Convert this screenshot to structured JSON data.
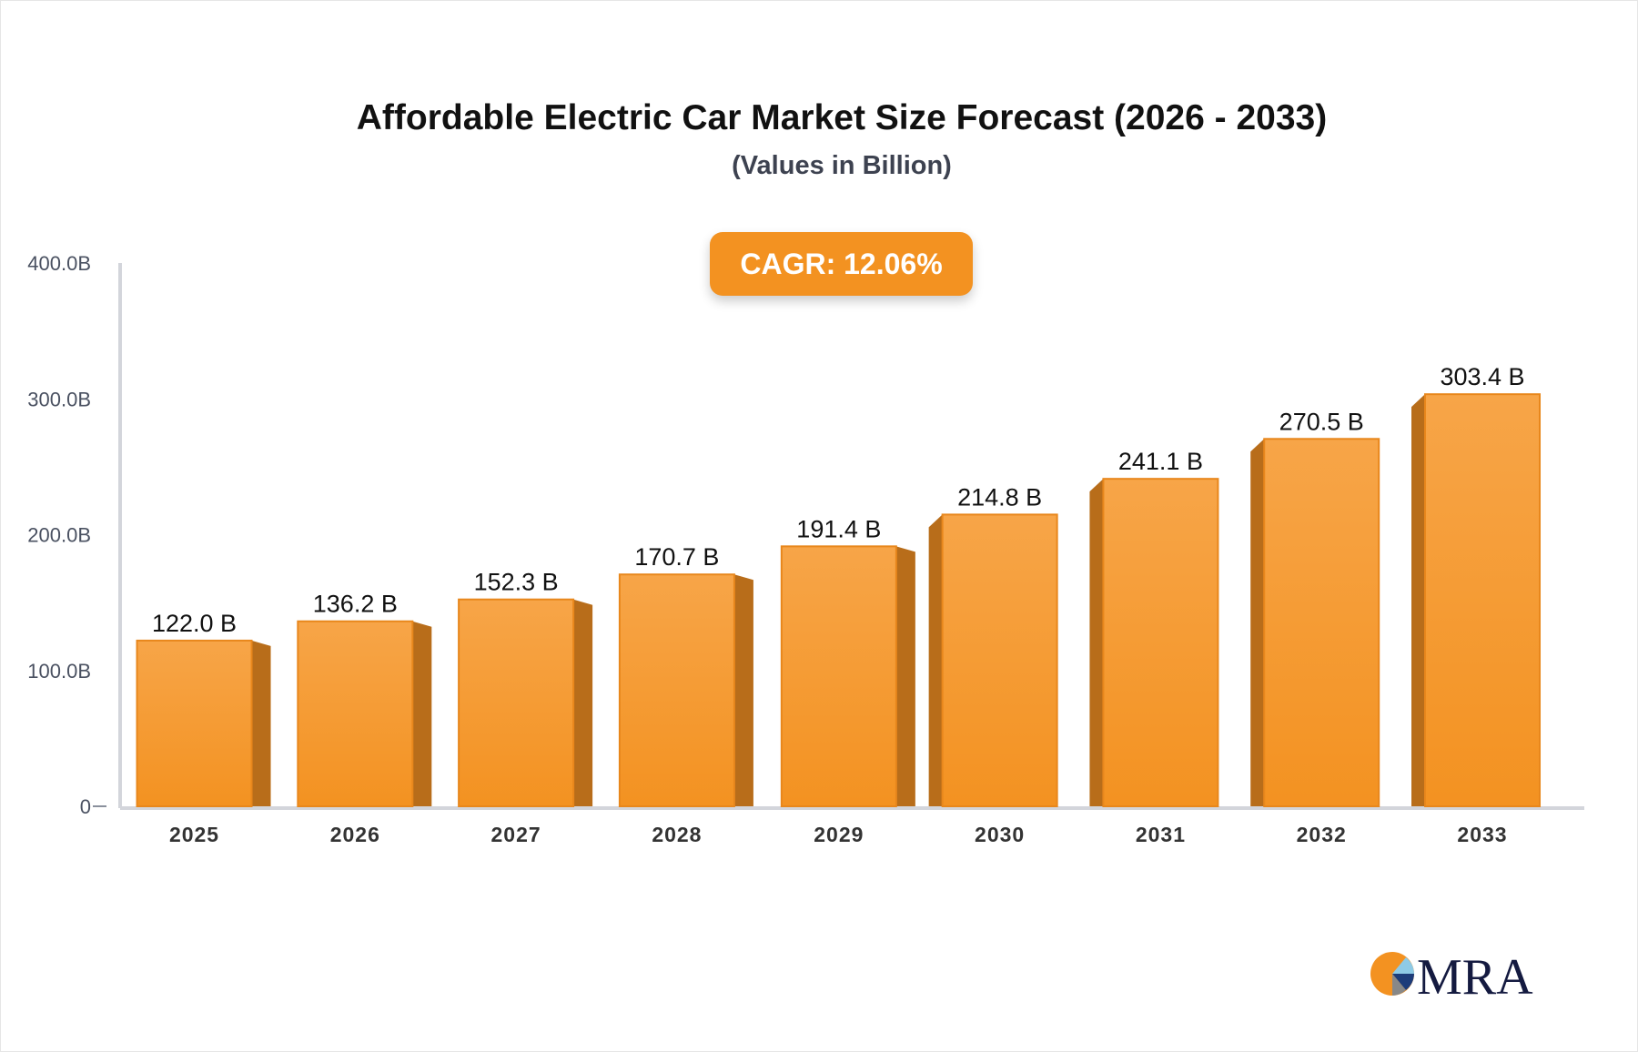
{
  "chart_data": {
    "type": "bar",
    "title": "Affordable Electric Car Market Size Forecast (2026 - 2033)",
    "subtitle": "(Values in Billion)",
    "badge": "CAGR: 12.06%",
    "categories": [
      "2025",
      "2026",
      "2027",
      "2028",
      "2029",
      "2030",
      "2031",
      "2032",
      "2033"
    ],
    "values": [
      122.0,
      136.2,
      152.3,
      170.7,
      191.4,
      214.8,
      241.1,
      270.5,
      303.4
    ],
    "data_labels": [
      "122.0 B",
      "136.2 B",
      "152.3 B",
      "170.7 B",
      "191.4 B",
      "214.8 B",
      "241.1 B",
      "270.5 B",
      "303.4 B"
    ],
    "yticks": [
      0,
      100,
      200,
      300,
      400
    ],
    "ytick_labels": [
      "0",
      "100.0B",
      "200.0B",
      "300.0B",
      "400.0B"
    ],
    "ylim": [
      0,
      400
    ],
    "grid": false,
    "xlabel": "",
    "ylabel": "",
    "colors": {
      "bar_front": "#f7a548",
      "bar_bottom": "#f39221",
      "bar_side": "#b86d1a",
      "axis": "#d3d5db",
      "badge": "#f39221"
    }
  },
  "logo": {
    "text": "MRA"
  }
}
